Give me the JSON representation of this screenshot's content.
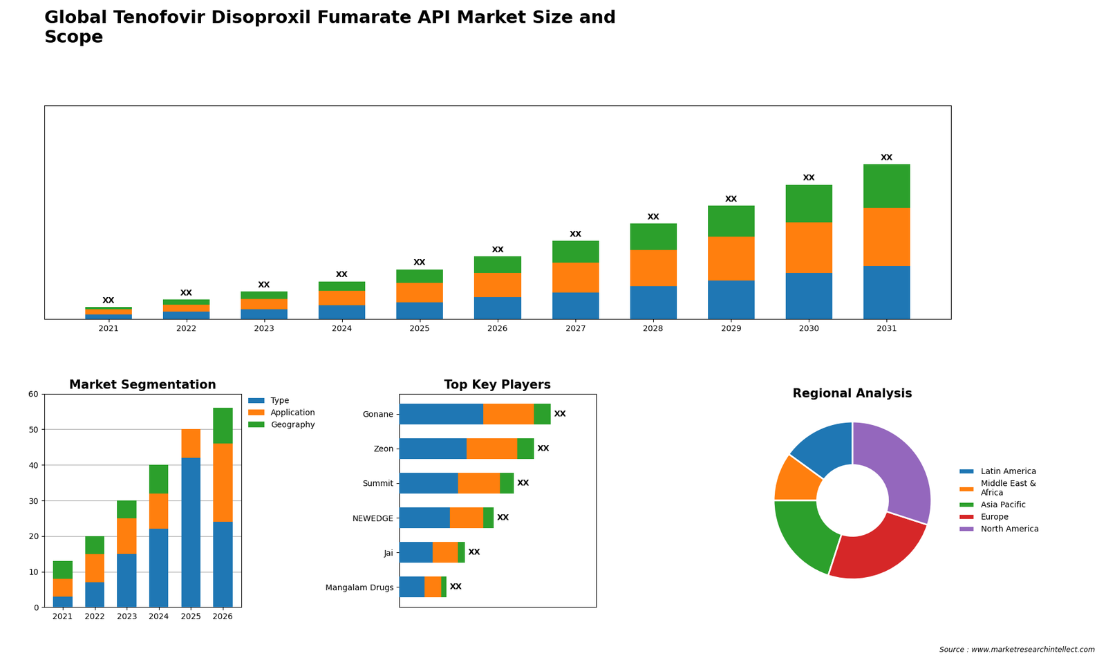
{
  "title": "Global Tenofovir Disoproxil Fumarate API Market Size and\nScope",
  "annotations": [
    "Source : www.marketresearchintellect.com"
  ],
  "chart_data": [
    {
      "type": "bar",
      "stacked": true,
      "categories": [
        "2021",
        "2022",
        "2023",
        "2024",
        "2025",
        "2026",
        "2027",
        "2028",
        "2029",
        "2030",
        "2031"
      ],
      "series": [
        {
          "values": [
            1,
            1.5,
            2,
            2.8,
            3.5,
            4.5,
            5.5,
            6.8,
            8,
            9.5,
            11
          ]
        },
        {
          "values": [
            1,
            1.5,
            2.2,
            3,
            4,
            5,
            6.2,
            7.5,
            9,
            10.5,
            12
          ]
        },
        {
          "values": [
            0.5,
            1,
            1.5,
            2,
            2.8,
            3.5,
            4.5,
            5.5,
            6.5,
            7.8,
            9
          ],
          "value_labels": [
            "XX",
            "XX",
            "XX",
            "XX",
            "XX",
            "XX",
            "XX",
            "XX",
            "XX",
            "XX",
            "XX"
          ]
        }
      ],
      "ylim": [
        0,
        44.16
      ],
      "tick_labels": "x"
    },
    {
      "type": "bar",
      "stacked": true,
      "title": "Market Segmentation",
      "categories": [
        "2021",
        "2022",
        "2023",
        "2024",
        "2025",
        "2026"
      ],
      "series": [
        {
          "name": "Type",
          "values": [
            3,
            7,
            15,
            22,
            42,
            24
          ]
        },
        {
          "name": "Application",
          "values": [
            5,
            8,
            10,
            10,
            8,
            22
          ]
        },
        {
          "name": "Geography",
          "values": [
            5,
            5,
            5,
            8,
            0,
            10
          ]
        }
      ],
      "ylim": [
        0,
        60
      ],
      "yticks": [
        0,
        10,
        20,
        30,
        40,
        50,
        60
      ],
      "grid": true,
      "legend": "upper left"
    },
    {
      "type": "bar",
      "stacked": true,
      "orientation": "horizontal",
      "title": "Top Key Players",
      "categories": [
        "Gonane",
        "Zeon",
        "Summit",
        "NEWEDGE",
        "Jai",
        "Mangalam Drugs"
      ],
      "series": [
        {
          "values": [
            5,
            4,
            3.5,
            3,
            2,
            1.5
          ]
        },
        {
          "values": [
            3,
            3,
            2.5,
            2,
            1.5,
            1
          ]
        },
        {
          "values": [
            1,
            1,
            0.8,
            0.6,
            0.4,
            0.3
          ],
          "value_labels": [
            "XX",
            "XX",
            "XX",
            "XX",
            "XX",
            "XX"
          ]
        }
      ],
      "xlim": [
        0,
        11.7
      ],
      "tick_labels": "y"
    },
    {
      "type": "pie",
      "title": "Regional Analysis",
      "categories": [
        "Latin America",
        "Middle East &\nAfrica",
        "Asia Pacific",
        "Europe",
        "North America"
      ],
      "values": [
        15,
        10,
        20,
        25,
        30
      ],
      "legend": "center left"
    }
  ]
}
